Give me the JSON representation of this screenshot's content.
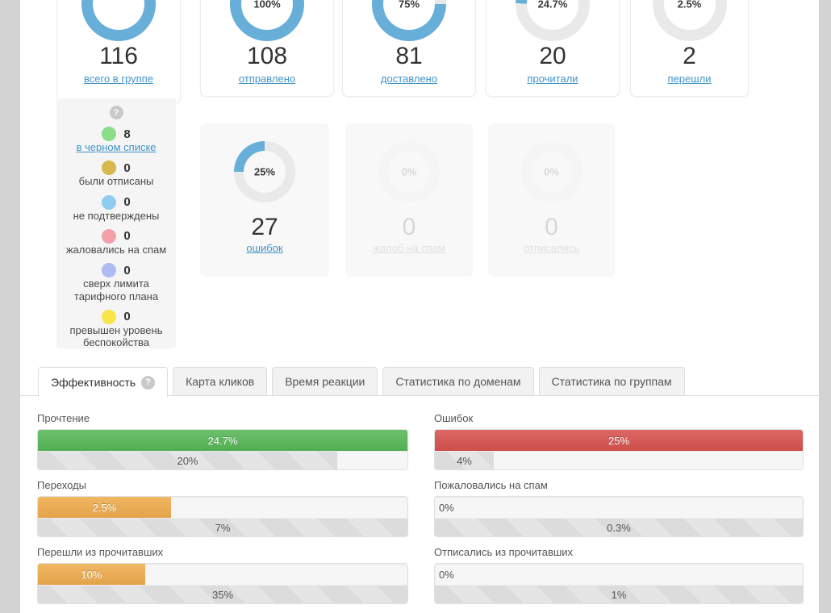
{
  "colors": {
    "accent_blue": "#67aed9",
    "donut_track": "#e9e9e9",
    "green": "#57b957",
    "orange": "#f0ad4e",
    "red": "#d9534f",
    "link": "#4193c7"
  },
  "help_icon_text": "?",
  "top_cards": [
    {
      "percent": "",
      "value": "116",
      "label": "всего в группе",
      "donut_pct": 100
    },
    {
      "percent": "100%",
      "value": "108",
      "label": "отправлено",
      "donut_pct": 100
    },
    {
      "percent": "75%",
      "value": "81",
      "label": "доставлено",
      "donut_pct": 75
    },
    {
      "percent": "24.7%",
      "value": "20",
      "label": "прочитали",
      "donut_pct": 24.7
    },
    {
      "percent": "2.5%",
      "value": "2",
      "label": "перешли",
      "donut_pct": 2.5
    }
  ],
  "blacklist_panel": {
    "items": [
      {
        "color": "#8ade87",
        "value": "8",
        "label": "в черном списке"
      },
      {
        "color": "#d6b84d",
        "value": "0",
        "label": "были отписаны"
      },
      {
        "color": "#8fcdf0",
        "value": "0",
        "label": "не подтверждены"
      },
      {
        "color": "#f2a1a8",
        "value": "0",
        "label": "жаловались на спам"
      },
      {
        "color": "#aebbf2",
        "value": "0",
        "label": "сверх лимита тарифного плана"
      },
      {
        "color": "#f7e54a",
        "value": "0",
        "label": "превышен уровень беспокойства"
      }
    ]
  },
  "second_cards": [
    {
      "percent": "25%",
      "value": "27",
      "label": "ошибок",
      "donut_pct": 25
    },
    {
      "percent": "0%",
      "value": "0",
      "label": "жалоб на спам",
      "donut_pct": 0
    },
    {
      "percent": "0%",
      "value": "0",
      "label": "отписались",
      "donut_pct": 0
    }
  ],
  "tabs": [
    {
      "label": "Эффективность"
    },
    {
      "label": "Карта кликов"
    },
    {
      "label": "Время реакции"
    },
    {
      "label": "Статистика по доменам"
    },
    {
      "label": "Статистика по группам"
    }
  ],
  "metrics": {
    "left": [
      {
        "title": "Прочтение",
        "main_label": "24.7%",
        "main_color": "#57b957",
        "main_width": 100,
        "avg_label": "20%",
        "avg_width": 81
      },
      {
        "title": "Переходы",
        "main_label": "2.5%",
        "main_color": "#f0ad4e",
        "main_width": 36,
        "avg_label": "7%",
        "avg_width": 100
      },
      {
        "title": "Перешли из прочитавших",
        "main_label": "10%",
        "main_color": "#f0ad4e",
        "main_width": 29,
        "avg_label": "35%",
        "avg_width": 100
      }
    ],
    "right": [
      {
        "title": "Ошибок",
        "main_label": "25%",
        "main_color": "#d9534f",
        "main_width": 100,
        "avg_label": "4%",
        "avg_width": 16
      },
      {
        "title": "Пожаловались на спам",
        "main_label": "0%",
        "main_color": "",
        "main_width": 0,
        "avg_label": "0.3%",
        "avg_width": 100
      },
      {
        "title": "Отписались из прочитавших",
        "main_label": "0%",
        "main_color": "",
        "main_width": 0,
        "avg_label": "1%",
        "avg_width": 100
      }
    ]
  }
}
